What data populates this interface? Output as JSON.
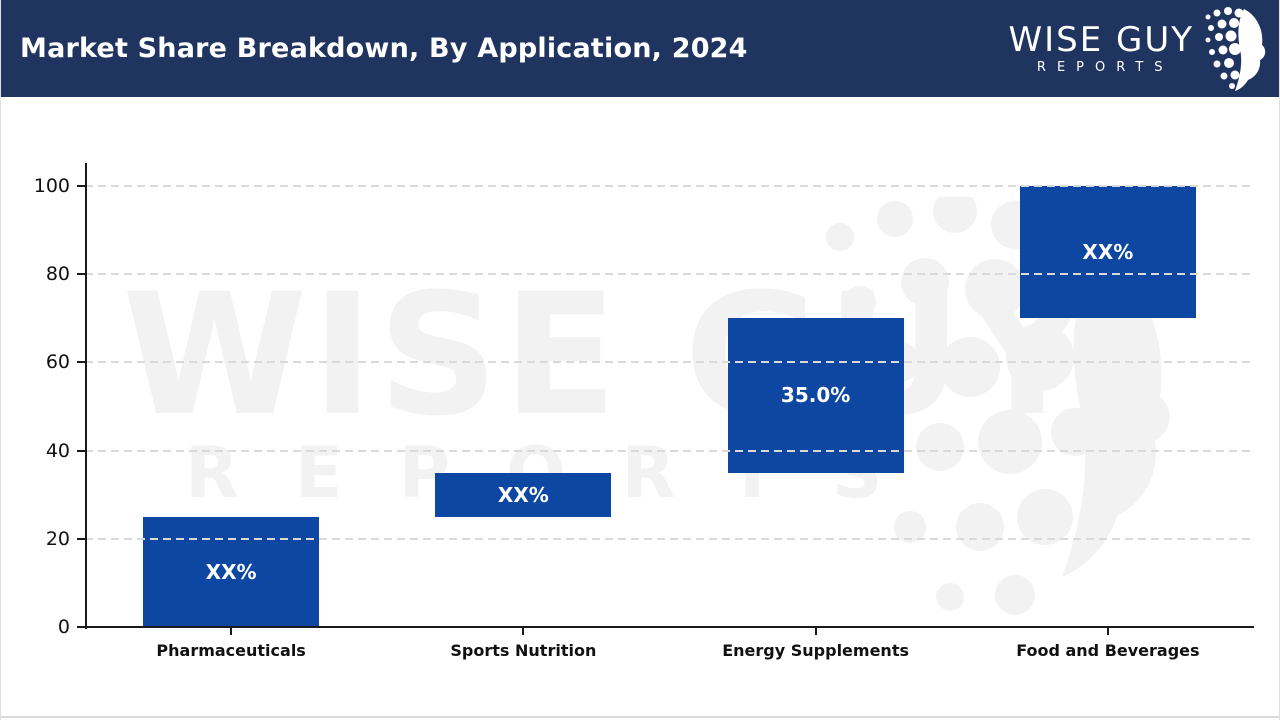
{
  "header": {
    "title": "Market Share Breakdown, By Application, 2024",
    "logo": {
      "line1": "WISE GUY",
      "line2": "REPORTS"
    }
  },
  "watermark": {
    "line1": "WISE GUY",
    "line2": "REPORTS"
  },
  "colors": {
    "header_bg": "#1f3560",
    "bar": "#0d47a1",
    "bar_label": "#ffffff",
    "grid": "#d9d9d9",
    "axis": "#1a1a1a",
    "watermark": "#f2f2f2"
  },
  "chart_data": {
    "type": "bar",
    "subtype": "waterfall",
    "title": "Market Share Breakdown, By Application, 2024",
    "categories": [
      "Pharmaceuticals",
      "Sports Nutrition",
      "Energy Supplements",
      "Food and Beverages"
    ],
    "series": [
      {
        "name": "Market Share (%)",
        "segments": [
          {
            "category": "Pharmaceuticals",
            "start": 0,
            "end": 25,
            "value_label": "XX%"
          },
          {
            "category": "Sports Nutrition",
            "start": 25,
            "end": 35,
            "value_label": "XX%"
          },
          {
            "category": "Energy Supplements",
            "start": 35,
            "end": 70,
            "value_label": "35.0%"
          },
          {
            "category": "Food and Beverages",
            "start": 70,
            "end": 100,
            "value_label": "XX%"
          }
        ]
      }
    ],
    "xlabel": "",
    "ylabel": "",
    "ylim": [
      0,
      100
    ],
    "yticks": [
      0,
      20,
      40,
      60,
      80,
      100
    ],
    "grid": "horizontal-dashed",
    "legend": "none"
  }
}
